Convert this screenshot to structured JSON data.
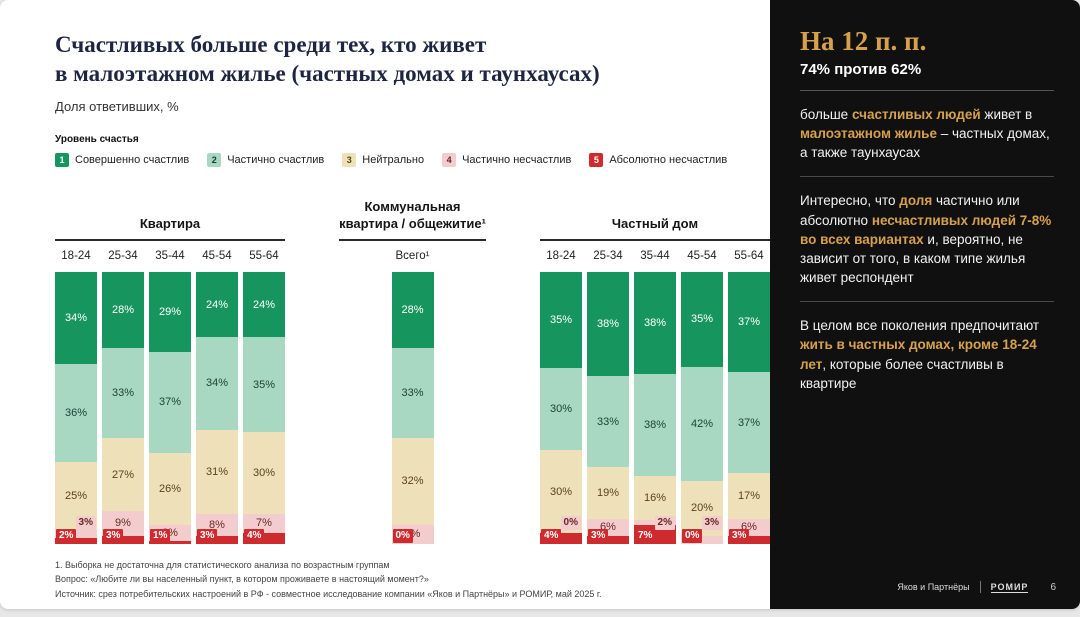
{
  "slide": {
    "title_line1": "Счастливых больше среди тех, кто живет",
    "title_line2": "в малоэтажном жилье (частных домах и таунхаусах)",
    "subtitle": "Доля ответивших, %",
    "legend_title": "Уровень счастья"
  },
  "chart_data": {
    "type": "stacked-bar",
    "unit": "%",
    "ylim": [
      0,
      100
    ],
    "legend": [
      {
        "id": "1",
        "key": "completely-happy",
        "label": "Совершенно счастлив",
        "color": "#17955f",
        "num_color": "#ffffff",
        "label_color": "#ffffff"
      },
      {
        "id": "2",
        "key": "partially-happy",
        "label": "Частично счастлив",
        "color": "#a8d7c2",
        "num_color": "#17402e",
        "label_color": "#1d4433"
      },
      {
        "id": "3",
        "key": "neutral",
        "label": "Нейтрально",
        "color": "#eee0b9",
        "num_color": "#57431c",
        "label_color": "#56451f"
      },
      {
        "id": "4",
        "key": "partially-unhappy",
        "label": "Частично несчастлив",
        "color": "#f3cdcd",
        "num_color": "#6b2424",
        "label_color": "#6b2424"
      },
      {
        "id": "5",
        "key": "absolutely-unhappy",
        "label": "Абсолютно несчастлив",
        "color": "#cf2b2f",
        "num_color": "#ffffff",
        "label_color": "#ffffff"
      }
    ],
    "groups": [
      {
        "title": "Квартира",
        "bars": [
          {
            "label": "18-24",
            "values": [
              34,
              36,
              25,
              3,
              2
            ]
          },
          {
            "label": "25-34",
            "values": [
              28,
              33,
              27,
              9,
              3
            ]
          },
          {
            "label": "35-44",
            "values": [
              29,
              37,
              26,
              6,
              1
            ]
          },
          {
            "label": "45-54",
            "values": [
              24,
              34,
              31,
              8,
              3
            ]
          },
          {
            "label": "55-64",
            "values": [
              24,
              35,
              30,
              7,
              4
            ]
          }
        ]
      },
      {
        "title": "Коммунальная квартира / общежитие¹",
        "bars": [
          {
            "label": "Всего¹",
            "values": [
              28,
              33,
              32,
              7,
              0
            ]
          }
        ]
      },
      {
        "title": "Частный дом",
        "bars": [
          {
            "label": "18-24",
            "values": [
              35,
              30,
              30,
              0,
              4
            ]
          },
          {
            "label": "25-34",
            "values": [
              38,
              33,
              19,
              6,
              3
            ]
          },
          {
            "label": "35-44",
            "values": [
              38,
              38,
              16,
              2,
              7
            ]
          },
          {
            "label": "45-54",
            "values": [
              35,
              42,
              20,
              3,
              0
            ]
          },
          {
            "label": "55-64",
            "values": [
              37,
              37,
              17,
              6,
              3
            ]
          }
        ]
      }
    ]
  },
  "footnotes": [
    "1.  Выборка не достаточна для статистического анализа по возрастным группам",
    "Вопрос: «Любите ли вы населенный пункт, в котором проживаете в настоящий момент?»",
    "Источник: срез потребительских настроений в РФ - совместное исследование компании «Яков и Партнёры» и РОМИР, май 2025 г."
  ],
  "panel": {
    "gold": "#d7a14b",
    "headline": "На 12 п. п.",
    "subheadline": "74% против 62%",
    "paragraphs": [
      {
        "segments": [
          {
            "t": "больше "
          },
          {
            "t": "счастливых людей",
            "gold": true
          },
          {
            "t": " живет в "
          },
          {
            "t": "малоэтажном жилье",
            "gold": true
          },
          {
            "t": " – частных домах, а также таунхаусах"
          }
        ]
      },
      {
        "segments": [
          {
            "t": "Интересно, что "
          },
          {
            "t": "доля",
            "gold": true
          },
          {
            "t": " частично или абсолютно "
          },
          {
            "t": "несчастливых людей 7-8% во всех вариантах",
            "gold": true
          },
          {
            "t": " и, вероятно, не зависит от того, в каком типе жилья живет респондент"
          }
        ]
      },
      {
        "segments": [
          {
            "t": "В целом все поколения предпочитают "
          },
          {
            "t": "жить в частных домах, кроме 18-24 лет",
            "gold": true
          },
          {
            "t": ", которые более счастливы в квартире"
          }
        ]
      }
    ],
    "footer_left": "Яков и Партнёры",
    "footer_brand": "РОМИР",
    "page_number": "6"
  }
}
